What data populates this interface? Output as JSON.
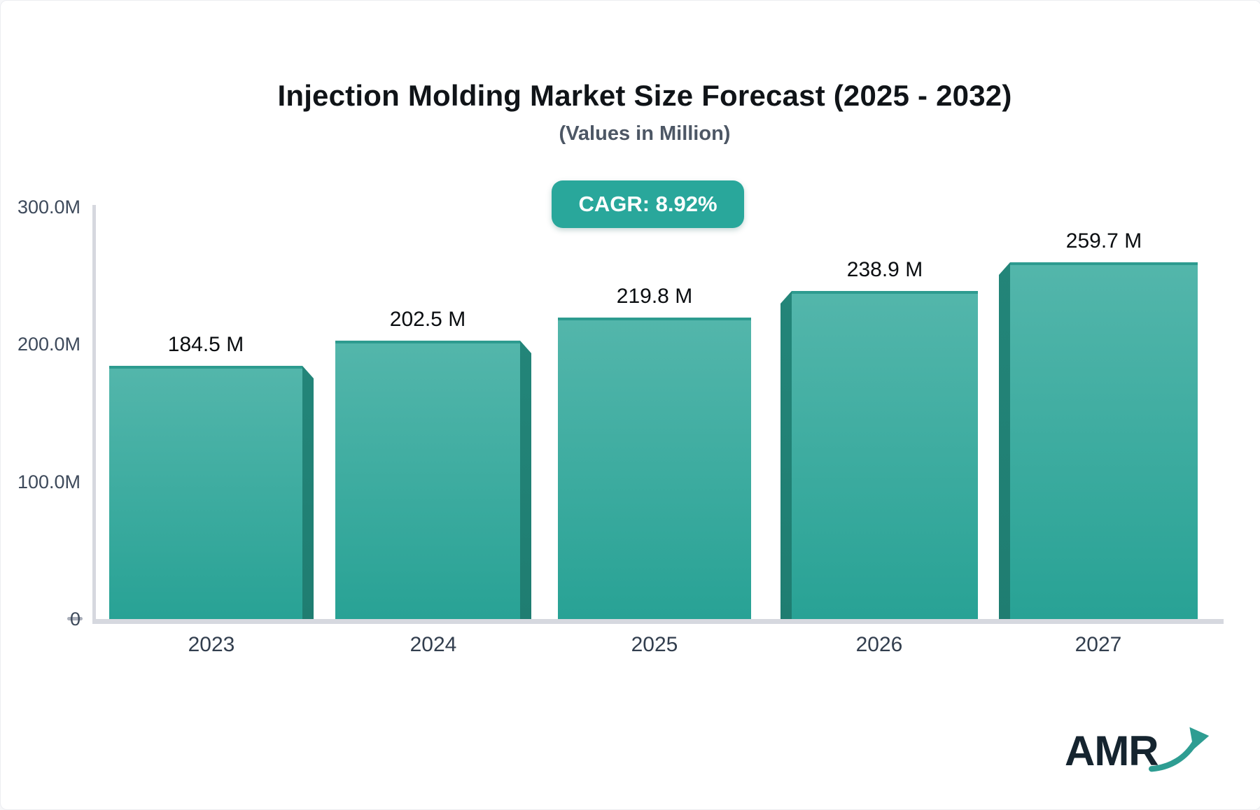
{
  "header": {
    "title": "Injection Molding Market Size Forecast (2025 - 2032)",
    "subtitle": "(Values in Million)"
  },
  "badge": {
    "label": "CAGR: 8.92%"
  },
  "logo": {
    "text": "AMR"
  },
  "colors": {
    "bar_face_top": "#53B6AB",
    "bar_face_bottom": "#28A295",
    "bar_top_edge": "#2D9B8F",
    "bar_side_dark": "#1F7D71",
    "badge_bg": "#29A79B",
    "axis_gray": "#D6D8DF",
    "title_text": "#101418",
    "subtitle_text": "#4d5765",
    "value_text": "#0a0d10",
    "tick_text": "#3e4a5b",
    "year_text": "#323e4e",
    "logo_text": "#15242F",
    "logo_arrow": "#2E9D92"
  },
  "chart_data": {
    "type": "bar",
    "title": "Injection Molding Market Size Forecast (2025 - 2032)",
    "subtitle": "(Values in Million)",
    "unit": "Million",
    "cagr": "8.92%",
    "categories": [
      "2023",
      "2024",
      "2025",
      "2026",
      "2027"
    ],
    "values": [
      184.5,
      202.5,
      219.8,
      238.9,
      259.7
    ],
    "value_labels": [
      "184.5 M",
      "202.5 M",
      "219.8 M",
      "238.9 M",
      "259.7 M"
    ],
    "xlabel": "",
    "ylabel": "",
    "ylim": [
      0,
      300
    ],
    "y_ticks": [
      {
        "value": 300,
        "label": "300.0M"
      },
      {
        "value": 200,
        "label": "200.0M"
      },
      {
        "value": 100,
        "label": "100.0M"
      },
      {
        "value": 0,
        "label": "0"
      }
    ],
    "grid": false,
    "legend": "none",
    "bar_style": "3d-beveled-gradient, perspective toward center bar"
  }
}
